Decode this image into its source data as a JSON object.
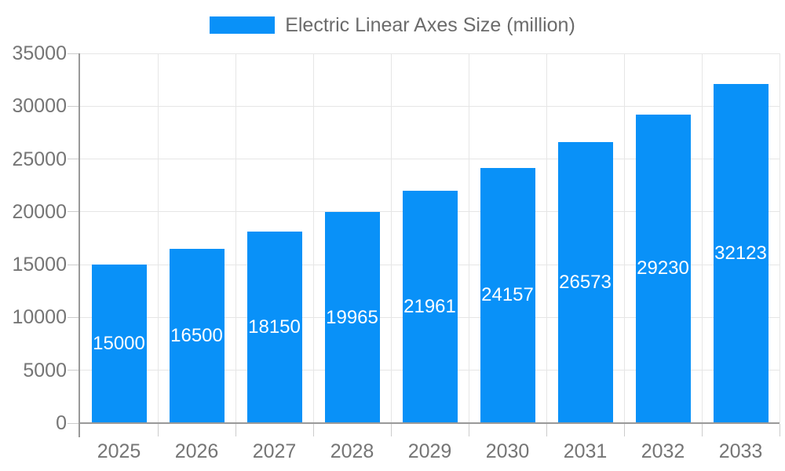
{
  "chart_data": {
    "type": "bar",
    "title": "Electric Linear Axes Size (million)",
    "legend_position": "top",
    "categories": [
      "2025",
      "2026",
      "2027",
      "2028",
      "2029",
      "2030",
      "2031",
      "2032",
      "2033"
    ],
    "values": [
      15000,
      16500,
      18150,
      19965,
      21961,
      24157,
      26573,
      29230,
      32123
    ],
    "series": [
      {
        "name": "Electric Linear Axes Size (million)",
        "values": [
          15000,
          16500,
          18150,
          19965,
          21961,
          24157,
          26573,
          29230,
          32123
        ]
      }
    ],
    "xlabel": "",
    "ylabel": "",
    "ylim": [
      0,
      35000
    ],
    "y_ticks": [
      0,
      5000,
      10000,
      15000,
      20000,
      25000,
      30000,
      35000
    ],
    "grid": true,
    "value_labels_visible": true,
    "colors": {
      "bar": "#0991f8",
      "value_label": "#ffffff",
      "axis_text": "#757575",
      "legend_text": "#6b6b6b",
      "gridline": "#e6e6e6",
      "axis_line": "#999999",
      "tick": "#cccccc"
    }
  }
}
